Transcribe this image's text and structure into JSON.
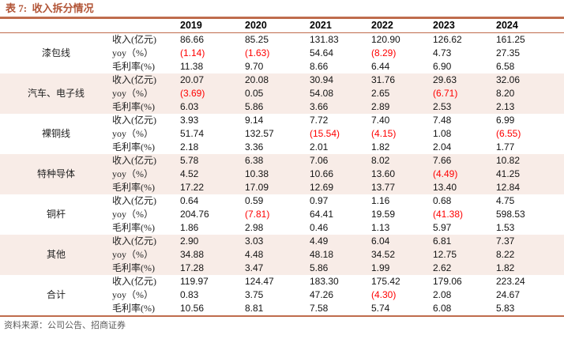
{
  "title": "表 7:  收入拆分情况",
  "footer": "资料来源：公司公告、招商证券",
  "columns": [
    "2019",
    "2020",
    "2021",
    "2022",
    "2023",
    "2024"
  ],
  "colors": {
    "accent_rule": "#bf6c4d",
    "title_text": "#b25537",
    "negative_value": "#fe0000",
    "band_background": "#f8ece7",
    "footer_text": "#5b5b5b"
  },
  "groups": [
    {
      "name": "漆包线",
      "rows": [
        {
          "metric": "收入(亿元)",
          "values": [
            "86.66",
            "85.25",
            "131.83",
            "120.90",
            "126.62",
            "161.25"
          ]
        },
        {
          "metric": "yoy（%）",
          "values": [
            "(1.14)",
            "(1.63)",
            "54.64",
            "(8.29)",
            "4.73",
            "27.35"
          ]
        },
        {
          "metric": "毛利率(%)",
          "values": [
            "11.38",
            "9.70",
            "8.66",
            "6.44",
            "6.90",
            "6.58"
          ]
        }
      ]
    },
    {
      "name": "汽车、电子线",
      "rows": [
        {
          "metric": "收入(亿元)",
          "values": [
            "20.07",
            "20.08",
            "30.94",
            "31.76",
            "29.63",
            "32.06"
          ]
        },
        {
          "metric": "yoy（%）",
          "values": [
            "(3.69)",
            "0.05",
            "54.08",
            "2.65",
            "(6.71)",
            "8.20"
          ]
        },
        {
          "metric": "毛利率(%)",
          "values": [
            "6.03",
            "5.86",
            "3.66",
            "2.89",
            "2.53",
            "2.13"
          ]
        }
      ]
    },
    {
      "name": "裸铜线",
      "rows": [
        {
          "metric": "收入(亿元)",
          "values": [
            "3.93",
            "9.14",
            "7.72",
            "7.40",
            "7.48",
            "6.99"
          ]
        },
        {
          "metric": "yoy（%）",
          "values": [
            "51.74",
            "132.57",
            "(15.54)",
            "(4.15)",
            "1.08",
            "(6.55)"
          ]
        },
        {
          "metric": "毛利率(%)",
          "values": [
            "2.18",
            "3.36",
            "2.01",
            "1.82",
            "2.04",
            "1.77"
          ]
        }
      ]
    },
    {
      "name": "特种导体",
      "rows": [
        {
          "metric": "收入(亿元)",
          "values": [
            "5.78",
            "6.38",
            "7.06",
            "8.02",
            "7.66",
            "10.82"
          ]
        },
        {
          "metric": "yoy（%）",
          "values": [
            "4.52",
            "10.38",
            "10.66",
            "13.60",
            "(4.49)",
            "41.25"
          ]
        },
        {
          "metric": "毛利率(%)",
          "values": [
            "17.22",
            "17.09",
            "12.69",
            "13.77",
            "13.40",
            "12.84"
          ]
        }
      ]
    },
    {
      "name": "铜杆",
      "rows": [
        {
          "metric": "收入(亿元)",
          "values": [
            "0.64",
            "0.59",
            "0.97",
            "1.16",
            "0.68",
            "4.75"
          ]
        },
        {
          "metric": "yoy（%）",
          "values": [
            "204.76",
            "(7.81)",
            "64.41",
            "19.59",
            "(41.38)",
            "598.53"
          ]
        },
        {
          "metric": "毛利率(%)",
          "values": [
            "1.86",
            "2.98",
            "0.46",
            "1.13",
            "5.97",
            "1.53"
          ]
        }
      ]
    },
    {
      "name": "其他",
      "rows": [
        {
          "metric": "收入(亿元)",
          "values": [
            "2.90",
            "3.03",
            "4.49",
            "6.04",
            "6.81",
            "7.37"
          ]
        },
        {
          "metric": "yoy（%）",
          "values": [
            "34.88",
            "4.48",
            "48.18",
            "34.52",
            "12.75",
            "8.22"
          ]
        },
        {
          "metric": "毛利率(%)",
          "values": [
            "17.28",
            "3.47",
            "5.86",
            "1.99",
            "2.62",
            "1.82"
          ]
        }
      ]
    },
    {
      "name": "合计",
      "rows": [
        {
          "metric": "收入(亿元)",
          "values": [
            "119.97",
            "124.47",
            "183.30",
            "175.42",
            "179.06",
            "223.24"
          ]
        },
        {
          "metric": "yoy（%）",
          "values": [
            "0.83",
            "3.75",
            "47.26",
            "(4.30)",
            "2.08",
            "24.67"
          ]
        },
        {
          "metric": "毛利率(%)",
          "values": [
            "10.56",
            "8.81",
            "7.58",
            "5.74",
            "6.08",
            "5.83"
          ]
        }
      ]
    }
  ]
}
